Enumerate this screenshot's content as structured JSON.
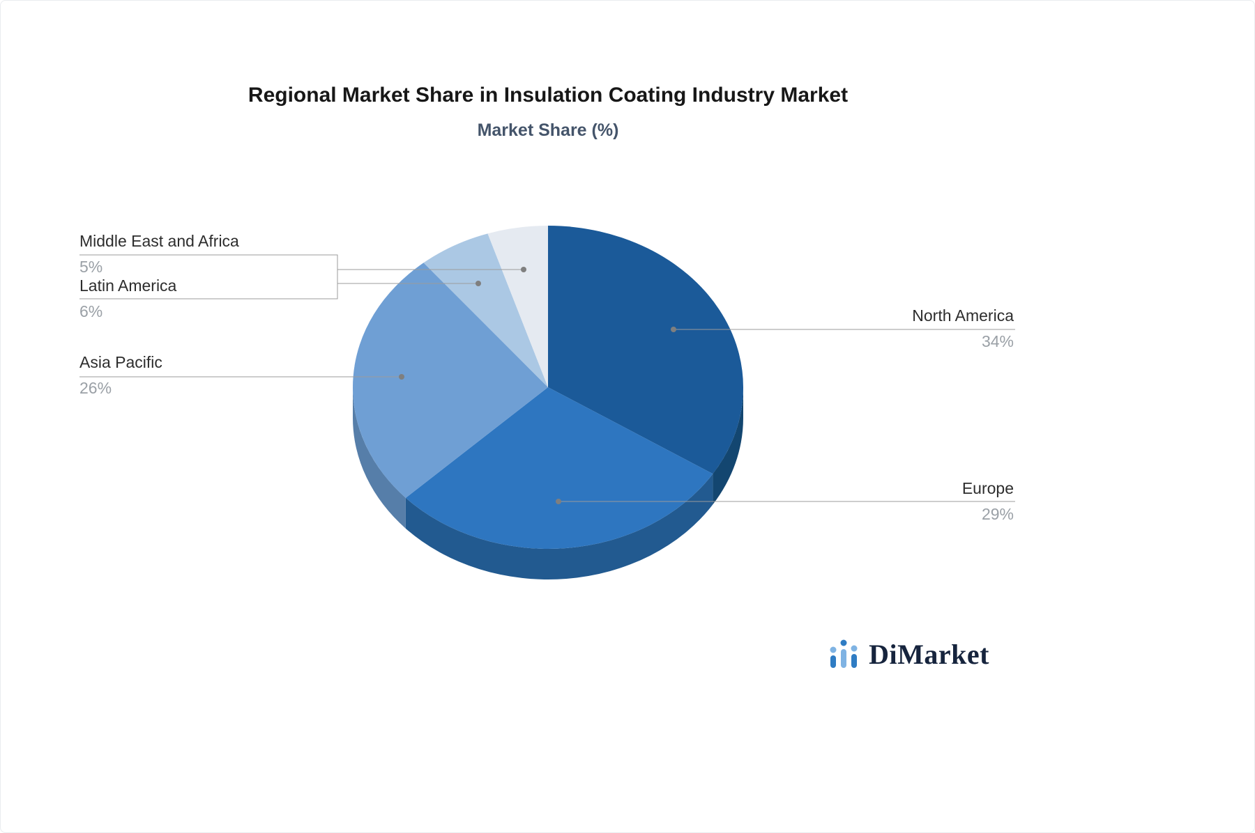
{
  "header": {
    "title": "Regional Market Share in Insulation Coating Industry Market",
    "subtitle": "Market Share (%)"
  },
  "brand": {
    "name": "DiMarket"
  },
  "chart_data": {
    "type": "pie",
    "style": "3d-pie",
    "title": "Regional Market Share in Insulation Coating Industry Market",
    "subtitle": "Market Share (%)",
    "unit": "%",
    "total": 100,
    "legend_position": "callout-labels",
    "slices": [
      {
        "label": "North America",
        "value": 34,
        "display": "34%",
        "color": "#1b5a99",
        "side_color": "#134670"
      },
      {
        "label": "Europe",
        "value": 29,
        "display": "29%",
        "color": "#2e76c0",
        "side_color": "#225a90"
      },
      {
        "label": "Asia Pacific",
        "value": 26,
        "display": "26%",
        "color": "#6f9fd4",
        "side_color": "#567ea9"
      },
      {
        "label": "Latin America",
        "value": 6,
        "display": "6%",
        "color": "#abc8e4",
        "side_color": "#8aa6bf"
      },
      {
        "label": "Middle East and Africa",
        "value": 5,
        "display": "5%",
        "color": "#e5eaf1",
        "side_color": "#bcc5d0"
      }
    ],
    "leader_line_color": "#9b9b9b",
    "label_color": "#2d2d2d",
    "value_color": "#9aa0a6"
  }
}
